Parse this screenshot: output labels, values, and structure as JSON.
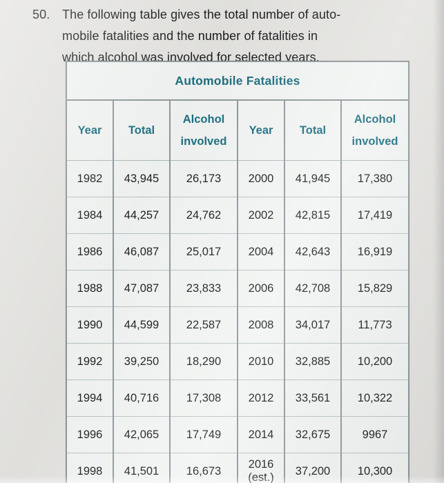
{
  "problem": {
    "number": "50.",
    "lines": [
      "The following table gives the total number of auto-",
      "mobile fatalities and the number of fatalities in",
      "which alcohol was involved for selected years."
    ]
  },
  "table": {
    "title": "Automobile Fatalities",
    "headers": [
      "Year",
      "Total",
      "Alcohol involved",
      "Year",
      "Total",
      "Alcohol involved"
    ],
    "rows": [
      [
        "1982",
        "43,945",
        "26,173",
        "2000",
        "41,945",
        "17,380"
      ],
      [
        "1984",
        "44,257",
        "24,762",
        "2002",
        "42,815",
        "17,419"
      ],
      [
        "1986",
        "46,087",
        "25,017",
        "2004",
        "42,643",
        "16,919"
      ],
      [
        "1988",
        "47,087",
        "23,833",
        "2006",
        "42,708",
        "15,829"
      ],
      [
        "1990",
        "44,599",
        "22,587",
        "2008",
        "34,017",
        "11,773"
      ],
      [
        "1992",
        "39,250",
        "18,290",
        "2010",
        "32,885",
        "10,200"
      ],
      [
        "1994",
        "40,716",
        "17,308",
        "2012",
        "33,561",
        "10,322"
      ],
      [
        "1996",
        "42,065",
        "17,749",
        "2014",
        "32,675",
        "9967"
      ],
      [
        "1998",
        "41,501",
        "16,673",
        "2016 (est.)",
        "37,200",
        "10,300"
      ]
    ],
    "colors": {
      "heading_teal": "#1b6d80",
      "table_background": "#f1f4f2",
      "page_background": "#e4e3e0"
    }
  }
}
